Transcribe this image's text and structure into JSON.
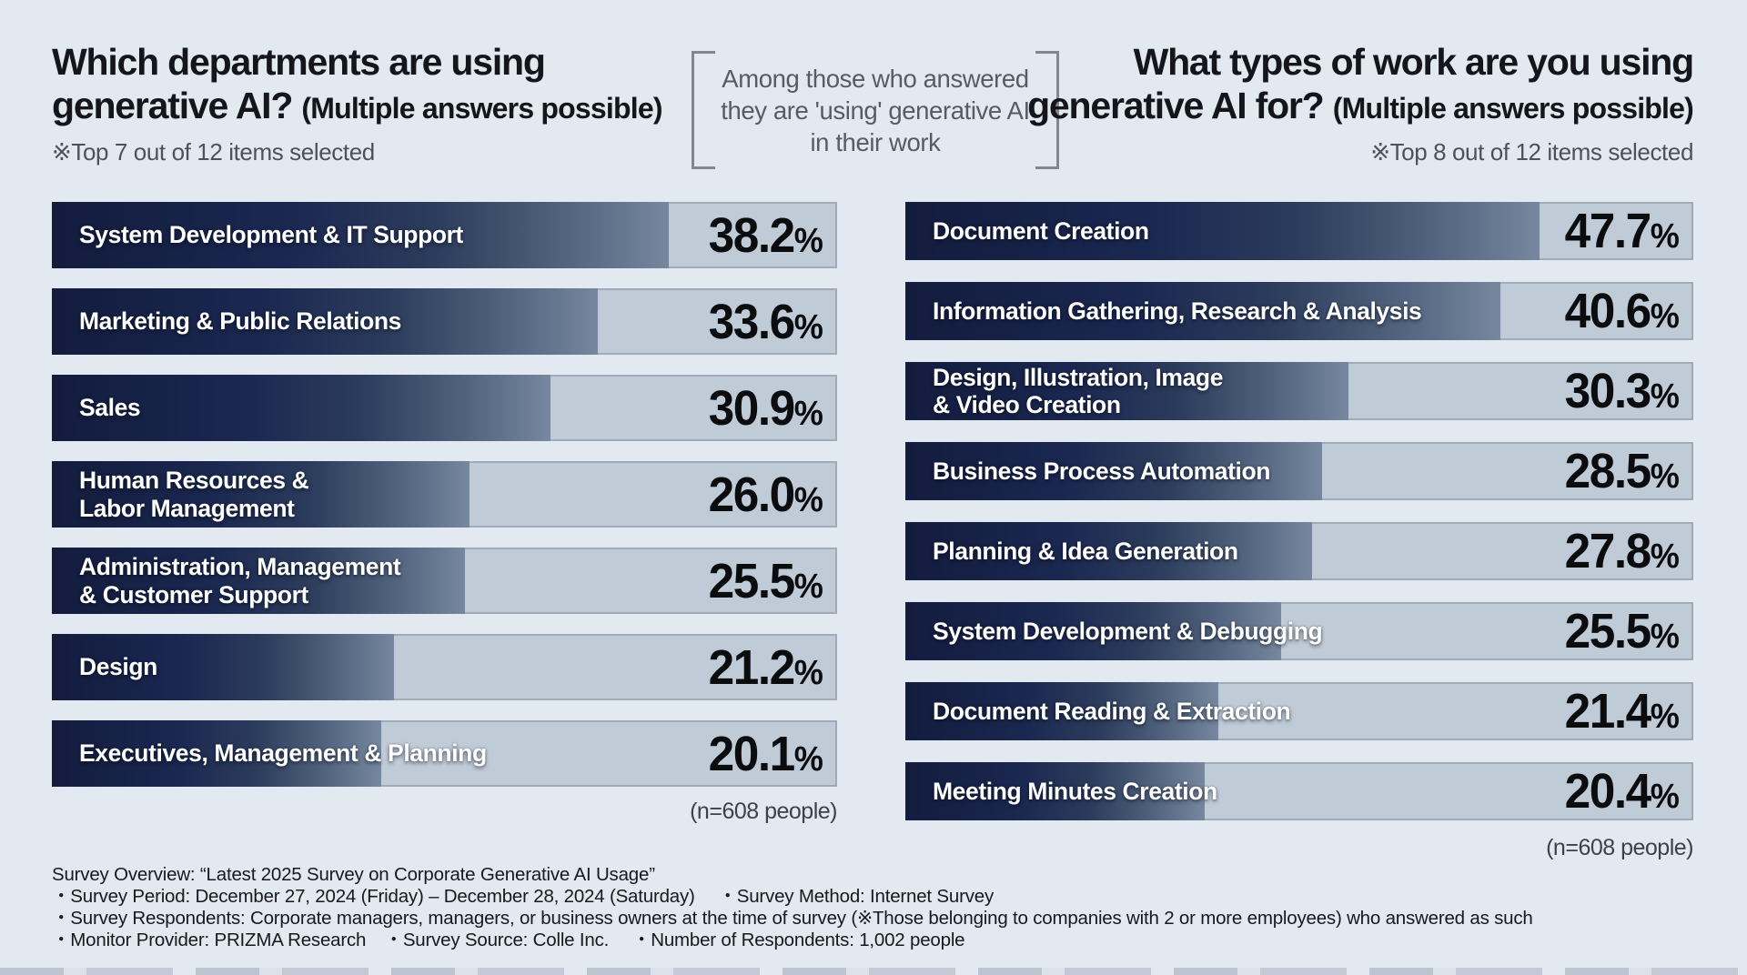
{
  "header": {
    "left": {
      "title_line1": "Which departments are using",
      "title_line2": "generative AI?",
      "title_paren": "(Multiple answers possible)",
      "note": "※Top 7 out of 12 items selected"
    },
    "center_note": {
      "lines": [
        "Among those who answered",
        "they are 'using' generative AI",
        "in their work"
      ]
    },
    "right": {
      "title_line1": "What types of work are you using",
      "title_line2": "generative AI for?",
      "title_paren": "(Multiple answers possible)",
      "note": "※Top 8 out of 12 items selected"
    }
  },
  "chart_data": [
    {
      "type": "bar",
      "orientation": "horizontal",
      "title": "Which departments are using generative AI? (Multiple answers possible)",
      "subtitle": "※Top 7 out of 12 items selected",
      "categories": [
        "System Development & IT Support",
        "Marketing & Public Relations",
        "Sales",
        "Human Resources & Labor Management",
        "Administration, Management & Customer Support",
        "Design",
        "Executives, Management & Planning"
      ],
      "category_lines": [
        [
          "System Development & IT Support"
        ],
        [
          "Marketing & Public Relations"
        ],
        [
          "Sales"
        ],
        [
          "Human Resources &",
          "Labor Management"
        ],
        [
          "Administration, Management",
          "& Customer Support"
        ],
        [
          "Design"
        ],
        [
          "Executives, Management & Planning"
        ]
      ],
      "values": [
        38.2,
        33.6,
        30.9,
        26.0,
        25.5,
        21.2,
        20.1
      ],
      "value_labels": [
        "38.2%",
        "33.6%",
        "30.9%",
        "26.0%",
        "25.5%",
        "21.2%",
        "20.1%"
      ],
      "xlim": [
        0,
        48.6
      ],
      "bar_fill_pct": [
        78.6,
        69.5,
        63.5,
        53.2,
        52.6,
        43.6,
        41.9
      ],
      "n_label": "(n=608 people)",
      "grid": false,
      "legend": "none",
      "bar_color_start": "#131c3d",
      "bar_color_end": "#76879e",
      "track_color": "#c0cbd8"
    },
    {
      "type": "bar",
      "orientation": "horizontal",
      "title": "What types of work are you using generative AI for? (Multiple answers possible)",
      "subtitle": "※Top 8 out of 12 items selected",
      "categories": [
        "Document Creation",
        "Information Gathering, Research & Analysis",
        "Design, Illustration, Image & Video Creation",
        "Business Process Automation",
        "Planning & Idea Generation",
        "System Development & Debugging",
        "Document Reading & Extraction",
        "Meeting Minutes Creation"
      ],
      "category_lines": [
        [
          "Document Creation"
        ],
        [
          "Information Gathering, Research & Analysis"
        ],
        [
          "Design, Illustration, Image",
          "& Video Creation"
        ],
        [
          "Business Process Automation"
        ],
        [
          "Planning & Idea Generation"
        ],
        [
          "System Development & Debugging"
        ],
        [
          "Document Reading & Extraction"
        ],
        [
          "Meeting Minutes Creation"
        ]
      ],
      "values": [
        47.7,
        40.6,
        30.3,
        28.5,
        27.8,
        25.5,
        21.4,
        20.4
      ],
      "value_labels": [
        "47.7%",
        "40.6%",
        "30.3%",
        "28.5%",
        "27.8%",
        "25.5%",
        "21.4%",
        "20.4%"
      ],
      "xlim": [
        0,
        53
      ],
      "bar_fill_pct": [
        80.5,
        75.5,
        56.2,
        52.9,
        51.6,
        47.7,
        39.7,
        38.0
      ],
      "n_label": "(n=608 people)",
      "grid": false,
      "legend": "none",
      "bar_color_start": "#131c3d",
      "bar_color_end": "#76879e",
      "track_color": "#c0cbd8"
    }
  ],
  "footer": {
    "lines": [
      "Survey Overview: “Latest 2025 Survey on Corporate Generative AI Usage”",
      "・Survey Period: December 27, 2024 (Friday) – December 28, 2024 (Saturday)　 ・Survey Method: Internet Survey",
      "・Survey Respondents: Corporate managers, managers, or business owners at the time of survey (※Those belonging to companies with 2 or more employees) who answered as such",
      "・Monitor Provider: PRIZMA Research　・Survey Source: Colle Inc.　 ・Number of Respondents: 1,002 people"
    ]
  },
  "colors": {
    "background": "#e3e9f0",
    "bar_dark": "#131c3d",
    "bar_fade": "#76879e",
    "track": "#c0cbd8",
    "title_text": "#14161b",
    "note_text": "#565b64",
    "value_text": "#0b0c0e"
  }
}
